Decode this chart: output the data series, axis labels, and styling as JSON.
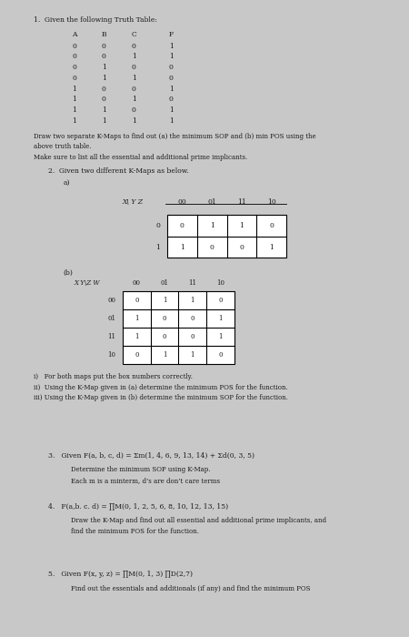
{
  "bg_color": "#ffffff",
  "page_bg": "#c8c8c8",
  "text_color": "#1a1a1a",
  "fs": 5.5,
  "fs_s": 5.0,
  "section1_title": "1.  Given the following Truth Table:",
  "truth_table_headers": [
    "A",
    "B",
    "C",
    "F"
  ],
  "truth_table_rows": [
    [
      "0",
      "0",
      "0",
      "1"
    ],
    [
      "0",
      "0",
      "1",
      "1"
    ],
    [
      "0",
      "1",
      "0",
      "0"
    ],
    [
      "0",
      "1",
      "1",
      "0"
    ],
    [
      "1",
      "0",
      "0",
      "1"
    ],
    [
      "1",
      "0",
      "1",
      "0"
    ],
    [
      "1",
      "1",
      "0",
      "1"
    ],
    [
      "1",
      "1",
      "1",
      "1"
    ]
  ],
  "section1_desc1": "Draw two separate K-Maps to find out (a) the minimum SOP and (b) min POS using the",
  "section1_desc2": "above truth table.",
  "section1_desc3": "Make sure to list all the essential and additional prime implicants.",
  "section2_title": "2.  Given two different K-Maps as below.",
  "section2_a": "a)",
  "kmap_a_header_row": "X\\ Y Z",
  "kmap_a_col_labels": [
    "00",
    "01",
    "11",
    "10"
  ],
  "kmap_a_row_labels": [
    "0",
    "1"
  ],
  "kmap_a_values": [
    [
      "0",
      "1",
      "1",
      "0"
    ],
    [
      "1",
      "0",
      "0",
      "1"
    ]
  ],
  "section2_b": "(b)",
  "kmap_b_header_row": "X Y\\Z W",
  "kmap_b_col_labels": [
    "00",
    "01",
    "11",
    "10"
  ],
  "kmap_b_row_labels": [
    "00",
    "01",
    "11",
    "10"
  ],
  "kmap_b_values": [
    [
      "0",
      "1",
      "1",
      "0"
    ],
    [
      "1",
      "0",
      "0",
      "1"
    ],
    [
      "1",
      "0",
      "0",
      "1"
    ],
    [
      "0",
      "1",
      "1",
      "0"
    ]
  ],
  "section2_instructions": [
    "i)   For both maps put the box numbers correctly.",
    "ii)  Using the K-Map given in (a) determine the minimum POS for the function.",
    "iii) Using the K-Map given in (b) determine the minimum SOP for the function."
  ],
  "section3_title": "3.   Given F(a, b, c, d) = Σm(1, 4, 6, 9, 13, 14) + Σd(0, 3, 5)",
  "section3_desc1": "Determine the minimum SOP using K-Map.",
  "section3_desc2": "Each m is a minterm, d’s are don’t care terms",
  "section4_title": "4.   F(a,b. c. d) = ∏M(0, 1, 2, 5, 6, 8, 10, 12, 13, 15)",
  "section4_desc1": "Draw the K-Map and find out all essential and additional prime implicants, and",
  "section4_desc2": "find the minimum POS for the function.",
  "section5_title": "5.   Given F(x, y, z) = ∏M(0, 1, 3) ∏D(2,7)",
  "section5_desc1": "Find out the essentials and additionals (if any) and find the minimum POS"
}
